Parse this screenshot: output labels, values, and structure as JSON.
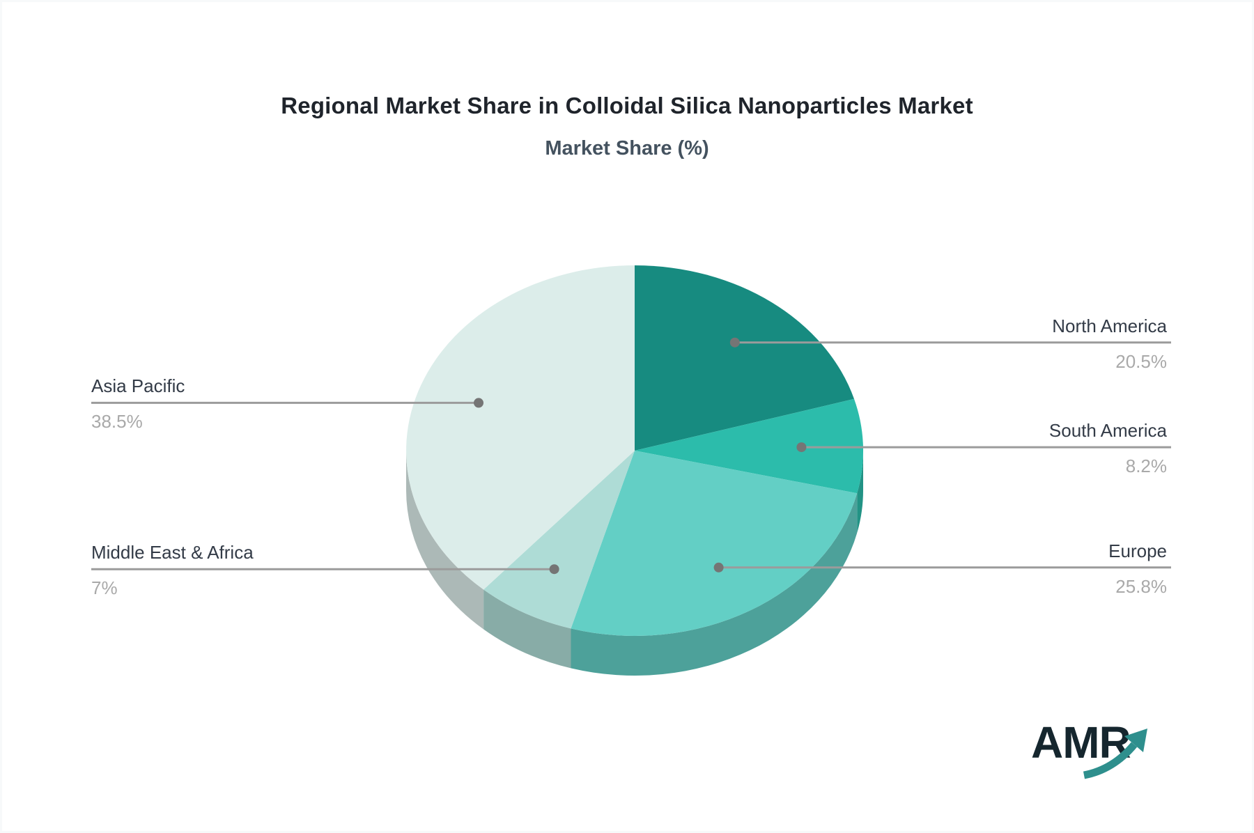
{
  "page": {
    "background": "#ffffff",
    "frame_color": "#f7f9fa"
  },
  "chart_data": {
    "type": "pie",
    "title": "Regional Market Share in Colloidal Silica Nanoparticles Market",
    "subtitle": "Market Share (%)",
    "unit": "%",
    "style_3d": true,
    "start_angle": "12-oclock",
    "direction": "clockwise",
    "slices": [
      {
        "label": "North America",
        "value": 20.5,
        "display": "20.5%",
        "color": "#178B80",
        "side": "right"
      },
      {
        "label": "South America",
        "value": 8.2,
        "display": "8.2%",
        "color": "#2CBCAB",
        "side": "right"
      },
      {
        "label": "Europe",
        "value": 25.8,
        "display": "25.8%",
        "color": "#63CFC5",
        "side": "right"
      },
      {
        "label": "Middle East & Africa",
        "value": 7,
        "display": "7%",
        "color": "#AEDCD6",
        "side": "left"
      },
      {
        "label": "Asia Pacific",
        "value": 38.5,
        "display": "38.5%",
        "color": "#DCEDEA",
        "side": "left"
      }
    ],
    "leader_line_color": "#9B9B9B",
    "leader_dot_color": "#757575",
    "title_color": "#1F242B",
    "subtitle_color": "#44525F",
    "label_name_color": "#333B47",
    "label_value_color": "#A9A9A9",
    "legend": "none"
  },
  "logo": {
    "text": "AMR",
    "icon": "trend-up-arrow-icon",
    "text_color": "#15262E",
    "arrow_color": "#2E8F8D"
  }
}
